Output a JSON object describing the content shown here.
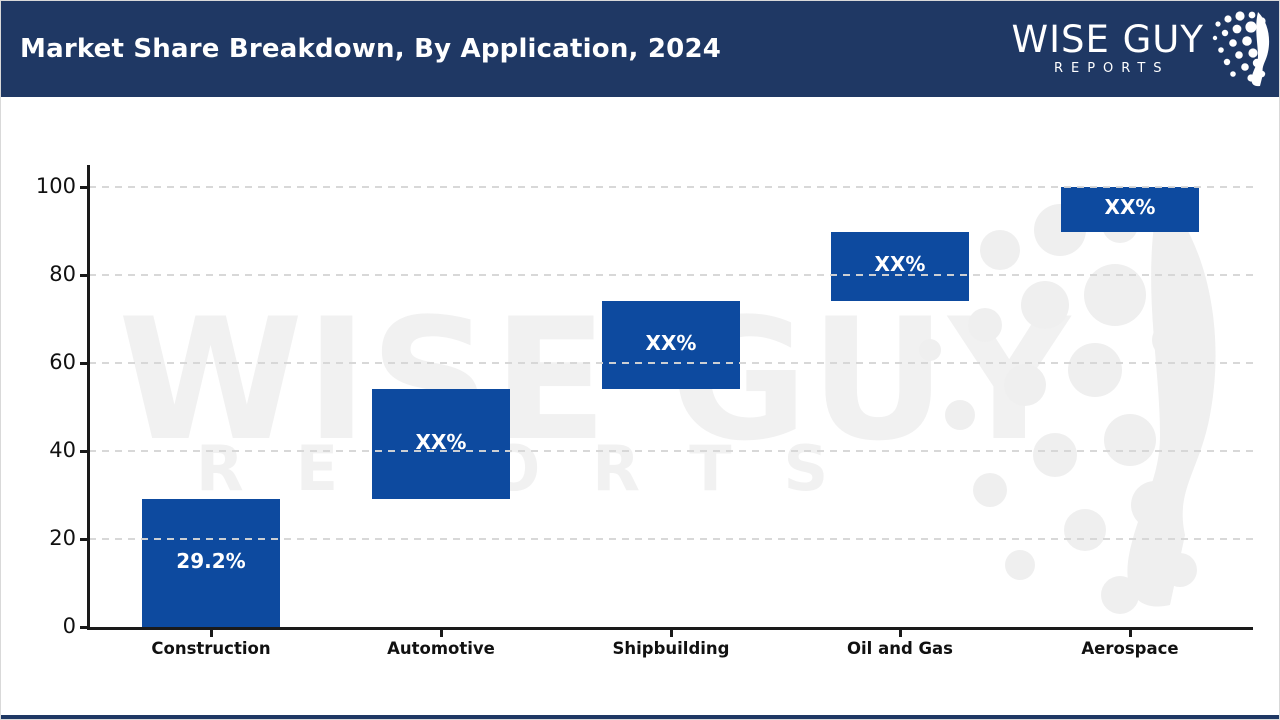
{
  "header": {
    "title": "Market Share Breakdown, By Application, 2024",
    "bg_color": "#1f3864",
    "text_color": "#ffffff",
    "logo": {
      "line1": "WISE GUY",
      "line2": "REPORTS"
    }
  },
  "watermark": {
    "line1": "WISE GUY",
    "line2": "REPORTS"
  },
  "chart_data": {
    "type": "bar",
    "variant": "waterfall",
    "title": "Market Share Breakdown, By Application, 2024",
    "categories": [
      "Construction",
      "Automotive",
      "Shipbuilding",
      "Oil and Gas",
      "Aerospace"
    ],
    "series": [
      {
        "name": "Market share (%)",
        "segments": [
          {
            "category": "Construction",
            "start": 0,
            "end": 29.2,
            "label": "29.2%"
          },
          {
            "category": "Automotive",
            "start": 29.2,
            "end": 54.2,
            "label": "XX%"
          },
          {
            "category": "Shipbuilding",
            "start": 54.2,
            "end": 74.2,
            "label": "XX%"
          },
          {
            "category": "Oil and Gas",
            "start": 74.2,
            "end": 89.8,
            "label": "XX%"
          },
          {
            "category": "Aerospace",
            "start": 89.8,
            "end": 100,
            "label": "XX%"
          }
        ]
      }
    ],
    "xlabel": "",
    "ylabel": "",
    "ylim": [
      0,
      105
    ],
    "yticks": [
      0,
      20,
      40,
      60,
      80,
      100
    ],
    "grid": "horizontal-dashed",
    "legend": "none",
    "bar_color": "#0d4a9f",
    "bar_label_color": "#ffffff",
    "axis_color": "#1a1a1a",
    "gridline_color": "#d6d6d6"
  }
}
